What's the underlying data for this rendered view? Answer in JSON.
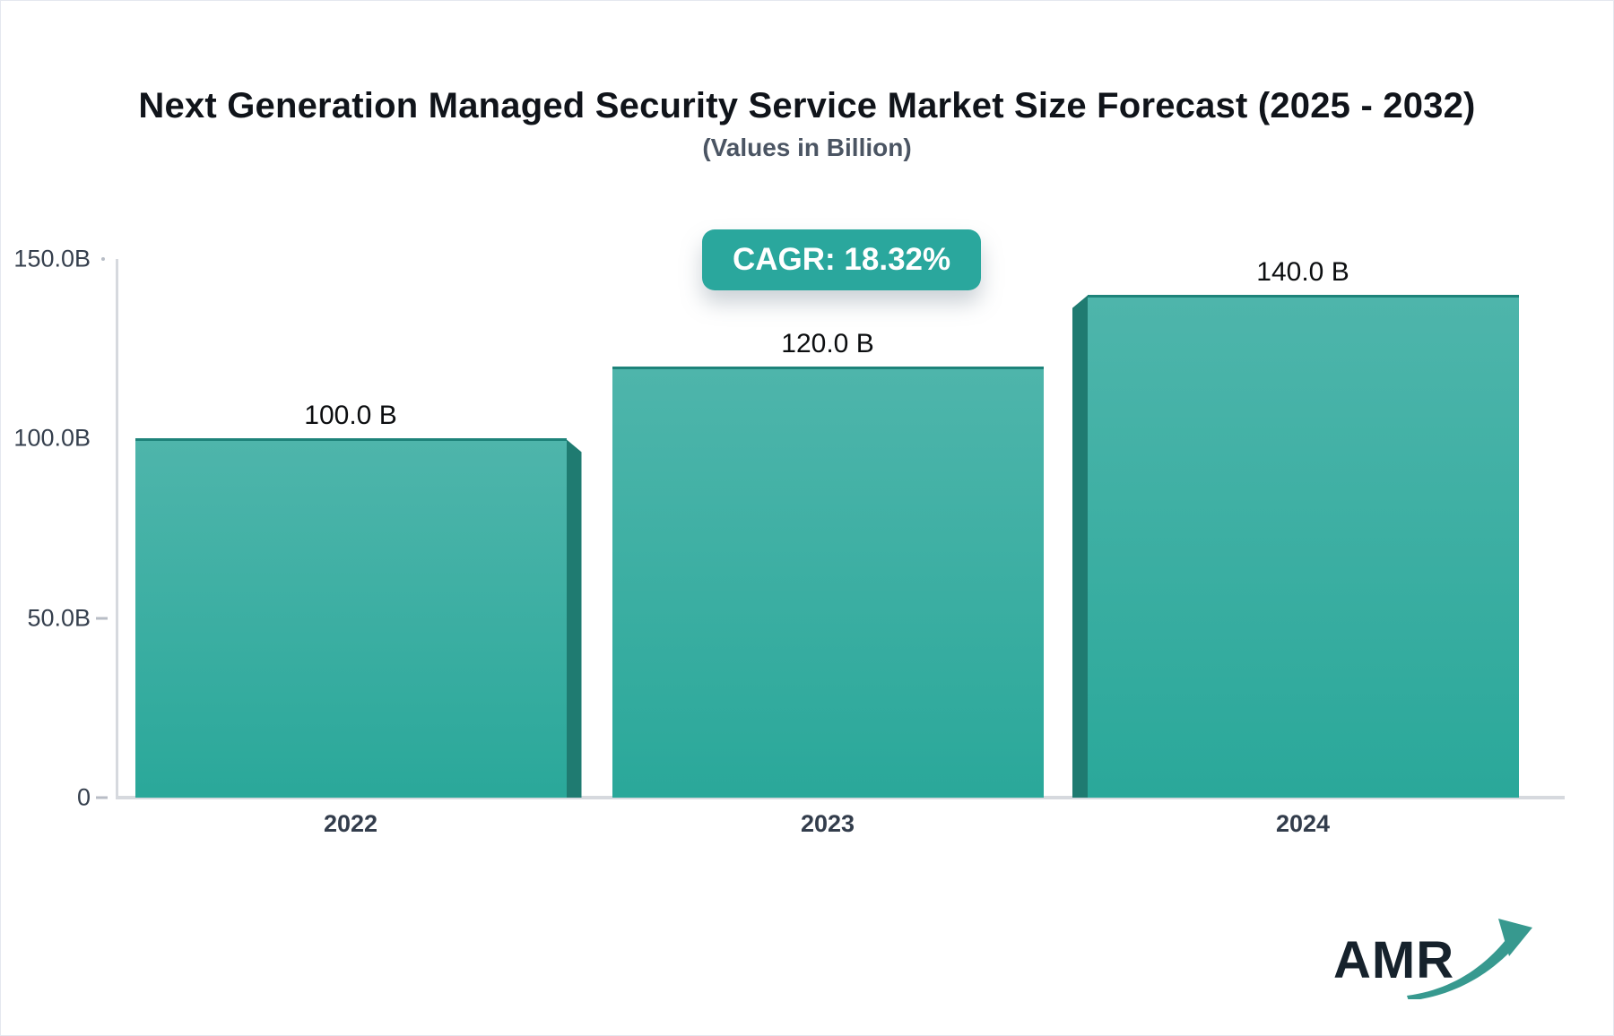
{
  "header": {
    "title": "Next Generation Managed Security Service Market Size Forecast (2025 - 2032)",
    "subtitle": "(Values in Billion)"
  },
  "badge": {
    "label": "CAGR: 18.32%",
    "color": "#2aa79d"
  },
  "chart_data": {
    "type": "bar",
    "title": "Next Generation Managed Security Service Market Size Forecast (2025 - 2032)",
    "subtitle": "(Values in Billion)",
    "categories": [
      "2022",
      "2023",
      "2024"
    ],
    "values": [
      100.0,
      120.0,
      140.0
    ],
    "value_labels": [
      "100.0 B",
      "120.0 B",
      "140.0 B"
    ],
    "ylabel": "",
    "xlabel": "",
    "ylim": [
      0,
      150
    ],
    "yticks": [
      {
        "value": 150,
        "label": "150.0B",
        "marker": "dot"
      },
      {
        "value": 100,
        "label": "100.0B",
        "marker": "none"
      },
      {
        "value": 50,
        "label": "50.0B",
        "marker": "dash"
      },
      {
        "value": 0,
        "label": "0",
        "marker": "dash"
      }
    ],
    "bar_3d_sides": [
      "right",
      "none",
      "left"
    ],
    "grid": false,
    "legend": false,
    "colors": {
      "bar_gradient_top": "#4eb5ab",
      "bar_gradient_bottom": "#2aa89a",
      "bar_top_border": "#1e837a",
      "bar_side_panel": "#1f7b71",
      "axis_line": "#d6d9de",
      "tick_label": "#353f4d",
      "value_label": "#0c0e10",
      "title": "#10141a",
      "subtitle": "#4b5563",
      "badge_bg": "#2aa79d",
      "badge_text": "#ffffff"
    }
  },
  "logo": {
    "text": "AMR",
    "arrow_color": "#37998f"
  }
}
